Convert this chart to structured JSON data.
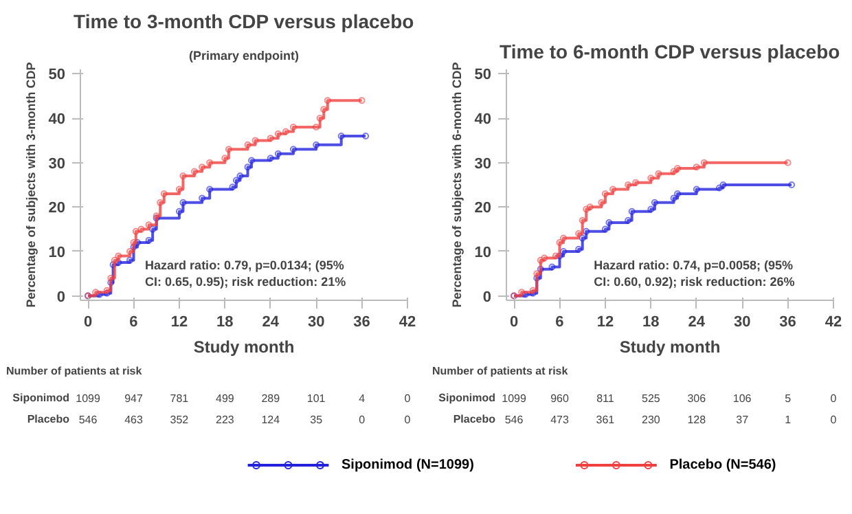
{
  "chart_data": [
    {
      "type": "step",
      "title": "Time to 3-month CDP versus placebo",
      "subtitle": "(Primary endpoint)",
      "xlabel": "Study month",
      "ylabel": "Percentage of subjects with 3-month CDP",
      "xlim": [
        -1,
        42
      ],
      "ylim": [
        -1,
        51
      ],
      "xticks": [
        0,
        6,
        12,
        18,
        24,
        30,
        36,
        42
      ],
      "yticks": [
        0,
        10,
        20,
        30,
        40,
        50
      ],
      "grid": false,
      "legend": "bottom",
      "marker": "circle",
      "series": [
        {
          "name": "Siponimod (N=1099)",
          "color": "#2222dd",
          "x": [
            0,
            1.5,
            2.5,
            3,
            3.3,
            4,
            5.5,
            6,
            6.5,
            8,
            8.5,
            9,
            12,
            12.5,
            15,
            16,
            19,
            19.5,
            20,
            21,
            21.5,
            24,
            25,
            27,
            30,
            33.3,
            36.5
          ],
          "values": [
            0,
            0.3,
            0.6,
            3,
            7,
            7.5,
            8,
            11,
            12,
            12.5,
            15,
            17.5,
            19,
            21,
            22,
            24,
            24.5,
            26,
            27,
            29,
            30.5,
            31,
            32,
            33,
            34,
            36,
            36
          ]
        },
        {
          "name": "Placebo (N=546)",
          "color": "#f04040",
          "x": [
            0,
            1,
            2.5,
            3,
            3.5,
            4,
            5.5,
            6,
            6.3,
            7,
            8,
            9,
            9.5,
            10,
            12,
            12.5,
            14,
            15,
            16,
            18,
            18.5,
            21,
            22,
            24,
            25,
            26,
            27,
            30,
            30.5,
            31,
            31.5,
            36
          ],
          "values": [
            0,
            0.8,
            1.2,
            4,
            8,
            9,
            10,
            12,
            14.5,
            15,
            16,
            18,
            21,
            23,
            24,
            27,
            28,
            29,
            30,
            31,
            33,
            34,
            35,
            35.5,
            36.5,
            37,
            38,
            38,
            40,
            42,
            44,
            44
          ]
        }
      ],
      "annotations": [
        "Hazard ratio: 0.79, p=0.0134; (95% CI: 0.65, 0.95); risk reduction: 21%",
        "Number of patients at risk",
        "Siponimod",
        "1099",
        "947",
        "781",
        "499",
        "289",
        "101",
        "4",
        "0",
        "Placebo",
        "546",
        "463",
        "352",
        "223",
        "124",
        "35",
        "0",
        "0"
      ]
    },
    {
      "type": "step",
      "title": "Time to 6-month CDP versus placebo",
      "xlabel": "Study month",
      "ylabel": "Percentage of subjects with 6-month CDP",
      "xlim": [
        -1,
        42
      ],
      "ylim": [
        -1,
        51
      ],
      "xticks": [
        0,
        6,
        12,
        18,
        24,
        30,
        36,
        42
      ],
      "yticks": [
        0,
        10,
        20,
        30,
        40,
        50
      ],
      "grid": false,
      "legend": "bottom",
      "marker": "circle",
      "series": [
        {
          "name": "Siponimod (N=1099)",
          "color": "#2222dd",
          "x": [
            0,
            1.5,
            2.5,
            3,
            3.5,
            5,
            6,
            6.5,
            8.5,
            9,
            9.5,
            12,
            12.5,
            15,
            15.5,
            18,
            18.5,
            21,
            21.5,
            24,
            27,
            27.5,
            36.5
          ],
          "values": [
            0,
            0.3,
            0.6,
            4,
            6,
            6.5,
            9,
            10,
            10.5,
            13,
            14.5,
            15,
            16.5,
            17,
            19,
            19.5,
            21,
            22,
            23,
            24,
            24.3,
            25,
            25
          ]
        },
        {
          "name": "Placebo (N=546)",
          "color": "#f04040",
          "x": [
            0,
            1,
            2.5,
            3,
            3.5,
            4,
            5.5,
            6,
            6.5,
            8.5,
            9,
            9.5,
            10,
            11.5,
            12,
            13,
            15,
            16,
            18,
            19,
            21,
            21.5,
            24,
            25,
            36
          ],
          "values": [
            0,
            0.8,
            1.2,
            5,
            8,
            8.5,
            9,
            12,
            13,
            14,
            17,
            19.5,
            20,
            21,
            23,
            24,
            25,
            25.5,
            26.5,
            27.5,
            28,
            28.7,
            29,
            30,
            30
          ]
        }
      ],
      "annotations": [
        "Hazard ratio: 0.74, p=0.0058; (95% CI: 0.60, 0.92); risk reduction: 26%",
        "Number of patients at risk",
        "Siponimod",
        "1099",
        "960",
        "811",
        "525",
        "306",
        "106",
        "5",
        "0",
        "Placebo",
        "546",
        "473",
        "361",
        "230",
        "128",
        "37",
        "1",
        "0"
      ]
    }
  ]
}
